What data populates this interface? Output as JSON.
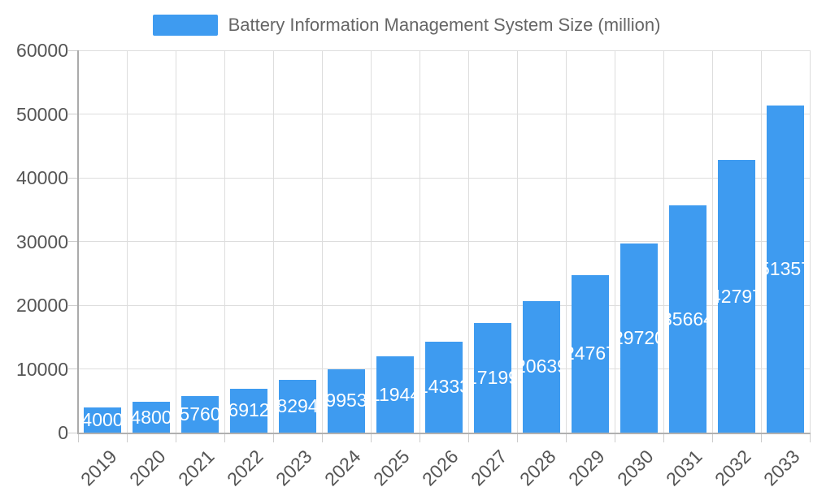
{
  "legend": {
    "label": "Battery Information Management System Size (million)"
  },
  "chart_data": {
    "type": "bar",
    "title": "Battery Information Management System Size (million)",
    "categories": [
      "2019",
      "2020",
      "2021",
      "2022",
      "2023",
      "2024",
      "2025",
      "2026",
      "2027",
      "2028",
      "2029",
      "2030",
      "2031",
      "2032",
      "2033"
    ],
    "values": [
      4000,
      4800,
      5760,
      6912,
      8294,
      9953,
      11944,
      14333,
      17199,
      20639,
      24767,
      29720,
      35664,
      42797,
      51357
    ],
    "xlabel": "",
    "ylabel": "",
    "ylim": [
      0,
      60000
    ],
    "yticks": [
      0,
      10000,
      20000,
      30000,
      40000,
      50000,
      60000
    ],
    "grid": true,
    "legend_position": "top-center",
    "value_labels": "white, centered inside bars, clipped to bar width",
    "colors": {
      "bar": "#3E9BF0",
      "bar_label": "#FFFFFF",
      "grid": "#DDDDDD",
      "axis": "#B0B0B0",
      "tick_text": "#555555",
      "legend_text": "#666666"
    }
  }
}
